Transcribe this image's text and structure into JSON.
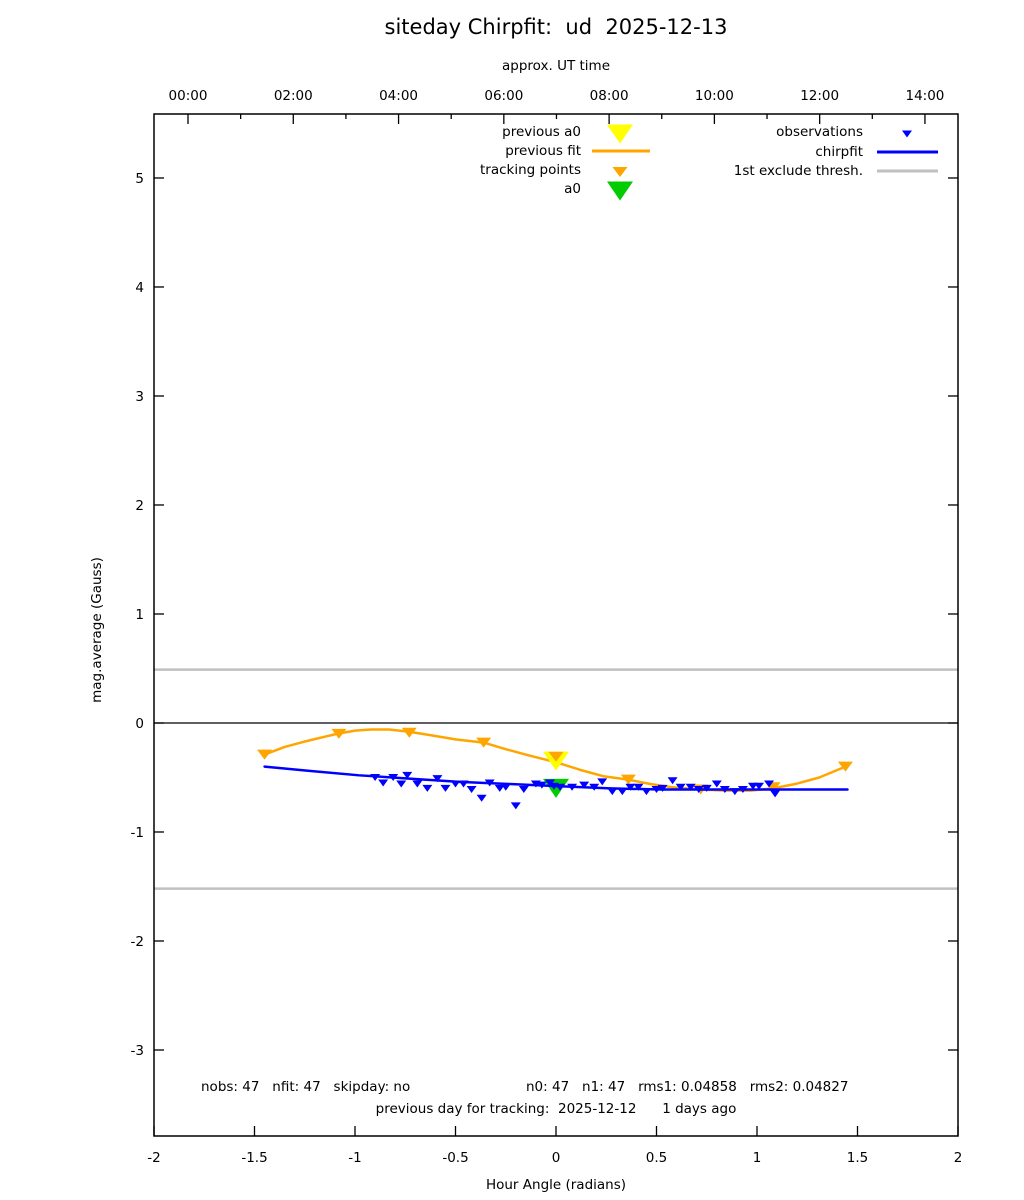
{
  "title": "siteday Chirpfit:  ud  2025-12-13",
  "top_axis": {
    "label": "approx. UT time",
    "range_hours": [
      -0.646,
      14.628
    ],
    "major": [
      {
        "h": 0,
        "label": "00:00"
      },
      {
        "h": 2,
        "label": "02:00"
      },
      {
        "h": 4,
        "label": "04:00"
      },
      {
        "h": 6,
        "label": "06:00"
      },
      {
        "h": 8,
        "label": "08:00"
      },
      {
        "h": 10,
        "label": "10:00"
      },
      {
        "h": 12,
        "label": "12:00"
      },
      {
        "h": 14,
        "label": "14:00"
      }
    ],
    "minor_hours": [
      1,
      3,
      5,
      7,
      9,
      11,
      13
    ]
  },
  "x_axis": {
    "label": "Hour Angle (radians)",
    "range": [
      -2,
      2
    ],
    "ticks": [
      {
        "v": -2,
        "label": "-2"
      },
      {
        "v": -1.5,
        "label": "-1.5"
      },
      {
        "v": -1,
        "label": "-1"
      },
      {
        "v": -0.5,
        "label": "-0.5"
      },
      {
        "v": 0,
        "label": "0"
      },
      {
        "v": 0.5,
        "label": "0.5"
      },
      {
        "v": 1,
        "label": "1"
      },
      {
        "v": 1.5,
        "label": "1.5"
      },
      {
        "v": 2,
        "label": "2"
      }
    ]
  },
  "y_axis": {
    "label": "mag.average (Gauss)",
    "range": [
      -3.789,
      5.587
    ],
    "ticks": [
      {
        "v": 5,
        "label": "5"
      },
      {
        "v": 4,
        "label": "4"
      },
      {
        "v": 3,
        "label": "3"
      },
      {
        "v": 2,
        "label": "2"
      },
      {
        "v": 1,
        "label": "1"
      },
      {
        "v": 0,
        "label": "0"
      },
      {
        "v": -1,
        "label": "-1"
      },
      {
        "v": -2,
        "label": "-2"
      },
      {
        "v": -3,
        "label": "-3"
      }
    ]
  },
  "colors": {
    "orange": "#FFA500",
    "yellow": "#FFFF00",
    "green": "#00CC00",
    "blue": "#0000FF",
    "gray": "#C0C0C0",
    "black": "#000000"
  },
  "legend": {
    "left": [
      {
        "label": "previous a0",
        "symbol": "triangle-large",
        "color": "#FFFF00"
      },
      {
        "label": "previous fit",
        "symbol": "line",
        "color": "#FFA500"
      },
      {
        "label": "tracking points",
        "symbol": "triangle-medium",
        "color": "#FFA500"
      },
      {
        "label": "a0",
        "symbol": "triangle-large",
        "color": "#00CC00"
      }
    ],
    "right": [
      {
        "label": "observations",
        "symbol": "triangle-small",
        "color": "#0000FF"
      },
      {
        "label": "chirpfit",
        "symbol": "line",
        "color": "#0000FF"
      },
      {
        "label": "1st exclude thresh.",
        "symbol": "line",
        "color": "#C0C0C0"
      }
    ]
  },
  "stats": {
    "line1_left": "nobs: 47   nfit: 47   skipday: no",
    "line1_right": "n0: 47   n1: 47   rms1: 0.04858   rms2: 0.04827",
    "line2": "previous day for tracking:  2025-12-12      1 days ago",
    "values": {
      "nobs": 47,
      "nfit": 47,
      "skipday": "no",
      "n0": 47,
      "n1": 47,
      "rms1": 0.04858,
      "rms2": 0.04827,
      "previous_day_for_tracking": "2025-12-12",
      "days_ago": 1
    }
  },
  "chart_data": {
    "type": "scatter",
    "title": "siteday Chirpfit:  ud  2025-12-13",
    "xlabel": "Hour Angle (radians)",
    "ylabel": "mag.average (Gauss)",
    "x2label": "approx. UT time",
    "xlim": [
      -2,
      2
    ],
    "ylim": [
      -3.789,
      5.587
    ],
    "grid": false,
    "legend_position": "top-inside",
    "series": [
      {
        "name": "1st exclude thresh.",
        "type": "hline",
        "color": "#C0C0C0",
        "width": 2.5,
        "values": [
          0.49,
          -1.52
        ]
      },
      {
        "name": "zero line",
        "type": "hline",
        "color": "#000000",
        "width": 1.3,
        "values": [
          0
        ]
      },
      {
        "name": "previous fit",
        "type": "line",
        "color": "#FFA500",
        "width": 2.5,
        "points": [
          [
            -1.45,
            -0.29
          ],
          [
            -1.35,
            -0.22
          ],
          [
            -1.25,
            -0.17
          ],
          [
            -1.16,
            -0.13
          ],
          [
            -1.09,
            -0.1
          ],
          [
            -1.0,
            -0.07
          ],
          [
            -0.92,
            -0.06
          ],
          [
            -0.83,
            -0.06
          ],
          [
            -0.73,
            -0.08
          ],
          [
            -0.63,
            -0.11
          ],
          [
            -0.5,
            -0.15
          ],
          [
            -0.36,
            -0.18
          ],
          [
            -0.25,
            -0.24
          ],
          [
            -0.13,
            -0.3
          ],
          [
            0.0,
            -0.36
          ],
          [
            0.12,
            -0.43
          ],
          [
            0.24,
            -0.49
          ],
          [
            0.36,
            -0.52
          ],
          [
            0.47,
            -0.56
          ],
          [
            0.58,
            -0.59
          ],
          [
            0.72,
            -0.61
          ],
          [
            0.84,
            -0.62
          ],
          [
            0.97,
            -0.62
          ],
          [
            1.08,
            -0.6
          ],
          [
            1.19,
            -0.56
          ],
          [
            1.31,
            -0.5
          ],
          [
            1.44,
            -0.4
          ]
        ]
      },
      {
        "name": "previous a0",
        "type": "scatter",
        "marker": "triangle-large",
        "color": "#FFFF00",
        "points": [
          [
            0.0,
            -0.35
          ]
        ]
      },
      {
        "name": "tracking points",
        "type": "scatter",
        "marker": "triangle-medium",
        "color": "#FFA500",
        "points": [
          [
            -1.45,
            -0.29
          ],
          [
            -1.08,
            -0.1
          ],
          [
            -0.73,
            -0.09
          ],
          [
            -0.36,
            -0.18
          ],
          [
            0.0,
            -0.31
          ],
          [
            0.36,
            -0.52
          ],
          [
            0.72,
            -0.61
          ],
          [
            1.08,
            -0.59
          ],
          [
            1.44,
            -0.4
          ]
        ]
      },
      {
        "name": "a0",
        "type": "scatter",
        "marker": "triangle-large",
        "color": "#00CC00",
        "points": [
          [
            0.0,
            -0.6
          ]
        ]
      },
      {
        "name": "observations",
        "type": "scatter",
        "marker": "triangle-small",
        "color": "#0000FF",
        "points": [
          [
            -0.9,
            -0.5
          ],
          [
            -0.86,
            -0.55
          ],
          [
            -0.81,
            -0.5
          ],
          [
            -0.77,
            -0.56
          ],
          [
            -0.74,
            -0.48
          ],
          [
            -0.69,
            -0.56
          ],
          [
            -0.64,
            -0.6
          ],
          [
            -0.59,
            -0.51
          ],
          [
            -0.55,
            -0.6
          ],
          [
            -0.5,
            -0.56
          ],
          [
            -0.46,
            -0.56
          ],
          [
            -0.42,
            -0.61
          ],
          [
            -0.37,
            -0.69
          ],
          [
            -0.33,
            -0.55
          ],
          [
            -0.28,
            -0.6
          ],
          [
            -0.25,
            -0.59
          ],
          [
            -0.2,
            -0.76
          ],
          [
            -0.16,
            -0.61
          ],
          [
            -0.1,
            -0.56
          ],
          [
            -0.07,
            -0.57
          ],
          [
            -0.03,
            -0.55
          ],
          [
            -0.01,
            -0.58
          ],
          [
            0.02,
            -0.59
          ],
          [
            0.08,
            -0.59
          ],
          [
            0.14,
            -0.57
          ],
          [
            0.19,
            -0.59
          ],
          [
            0.23,
            -0.54
          ],
          [
            0.28,
            -0.63
          ],
          [
            0.33,
            -0.63
          ],
          [
            0.37,
            -0.59
          ],
          [
            0.41,
            -0.59
          ],
          [
            0.45,
            -0.63
          ],
          [
            0.5,
            -0.61
          ],
          [
            0.53,
            -0.6
          ],
          [
            0.58,
            -0.53
          ],
          [
            0.62,
            -0.59
          ],
          [
            0.67,
            -0.59
          ],
          [
            0.71,
            -0.61
          ],
          [
            0.75,
            -0.6
          ],
          [
            0.8,
            -0.56
          ],
          [
            0.84,
            -0.61
          ],
          [
            0.89,
            -0.63
          ],
          [
            0.93,
            -0.61
          ],
          [
            0.98,
            -0.58
          ],
          [
            1.01,
            -0.58
          ],
          [
            1.06,
            -0.56
          ],
          [
            1.09,
            -0.65
          ]
        ]
      },
      {
        "name": "chirpfit",
        "type": "line",
        "color": "#0000FF",
        "width": 2.5,
        "points": [
          [
            -1.45,
            -0.4
          ],
          [
            -1.22,
            -0.44
          ],
          [
            -0.98,
            -0.48
          ],
          [
            -0.73,
            -0.51
          ],
          [
            -0.48,
            -0.54
          ],
          [
            -0.23,
            -0.56
          ],
          [
            0.02,
            -0.58
          ],
          [
            0.27,
            -0.6
          ],
          [
            0.52,
            -0.61
          ],
          [
            0.77,
            -0.61
          ],
          [
            1.01,
            -0.61
          ],
          [
            1.26,
            -0.61
          ],
          [
            1.45,
            -0.61
          ]
        ]
      }
    ]
  }
}
